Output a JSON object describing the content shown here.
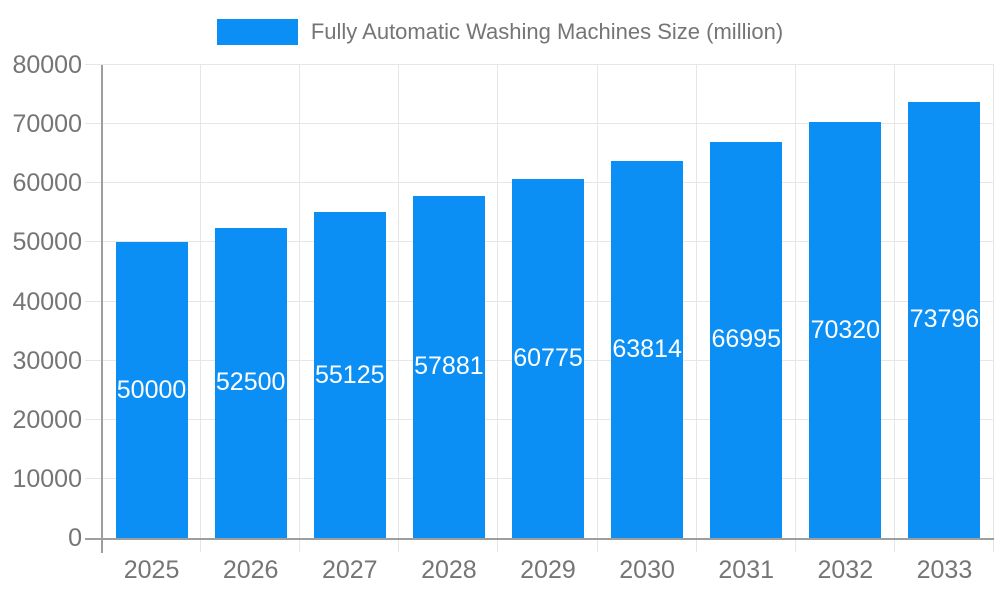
{
  "chart_data": {
    "type": "bar",
    "title": "Fully Automatic Washing Machines Size (million)",
    "series_name": "Fully Automatic Washing Machines Size (million)",
    "categories": [
      "2025",
      "2026",
      "2027",
      "2028",
      "2029",
      "2030",
      "2031",
      "2032",
      "2033"
    ],
    "values": [
      50000,
      52500,
      55125,
      57881,
      60775,
      63814,
      66995,
      70320,
      73796
    ],
    "bar_value_labels": [
      "50000",
      "52500",
      "55125",
      "57881",
      "60775",
      "63814",
      "66995",
      "70320",
      "73796"
    ],
    "xlabel": "",
    "ylabel": "",
    "ylim": [
      0,
      80000
    ],
    "ytick_step": 10000,
    "ytick_labels": [
      "0",
      "10000",
      "20000",
      "30000",
      "40000",
      "50000",
      "60000",
      "70000",
      "80000"
    ],
    "grid": true,
    "legend_position": "top-center"
  },
  "colors": {
    "bar": "#0C8FF4",
    "grid_line": "#E6E6E6",
    "axis_line": "#9E9E9E",
    "axis_text": "#757575",
    "bar_value_text": "#FFFFFF",
    "background": "#FFFFFF"
  }
}
